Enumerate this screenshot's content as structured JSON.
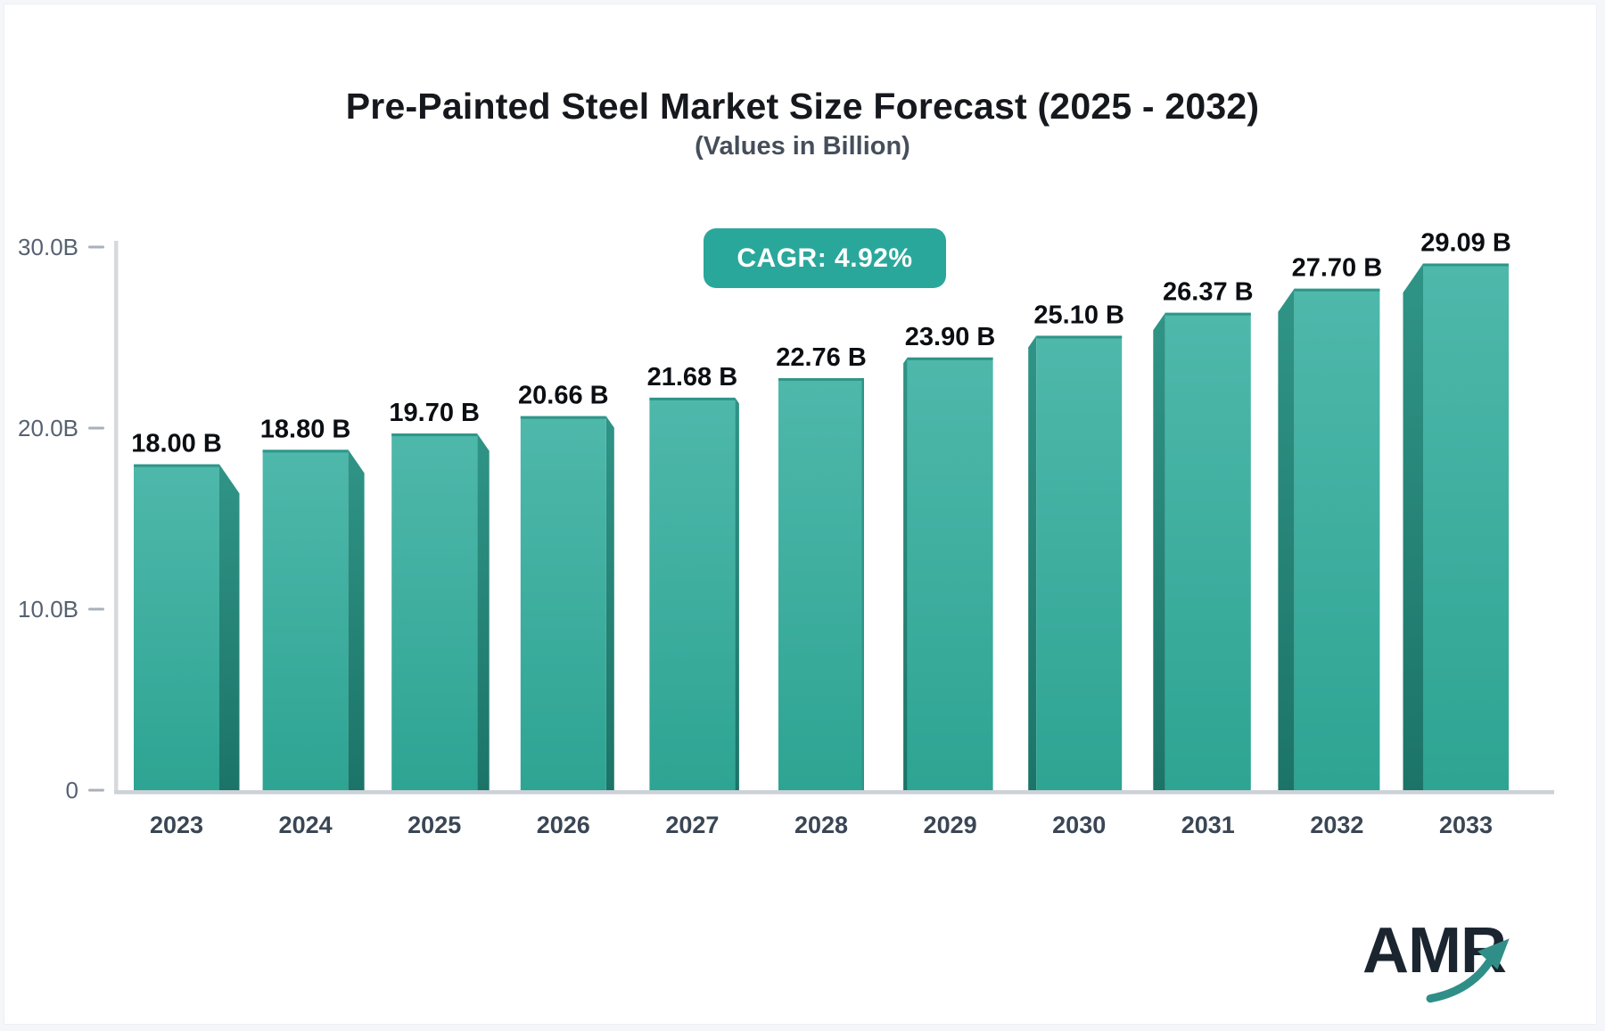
{
  "chart_data": {
    "type": "bar",
    "title": "Pre-Painted Steel Market Size Forecast (2025 - 2032)",
    "subtitle": "(Values in Billion)",
    "cagr_badge": "CAGR: 4.92%",
    "categories": [
      "2023",
      "2024",
      "2025",
      "2026",
      "2027",
      "2028",
      "2029",
      "2030",
      "2031",
      "2032",
      "2033"
    ],
    "values": [
      18.0,
      18.8,
      19.7,
      20.66,
      21.68,
      22.76,
      23.9,
      25.1,
      26.37,
      27.7,
      29.09
    ],
    "value_labels": [
      "18.00 B",
      "18.80 B",
      "19.70 B",
      "20.66 B",
      "21.68 B",
      "22.76 B",
      "23.90 B",
      "25.10 B",
      "26.37 B",
      "27.70 B",
      "29.09 B"
    ],
    "unit": "Billion",
    "ylim": [
      0,
      30
    ],
    "y_ticks": [
      {
        "value": 0,
        "label": "0"
      },
      {
        "value": 10,
        "label": "10.0B"
      },
      {
        "value": 20,
        "label": "20.0B"
      },
      {
        "value": 30,
        "label": "30.0B"
      }
    ],
    "grid": false,
    "legend": false
  },
  "logo": {
    "text": "AMR"
  },
  "colors": {
    "bar_top": "#4EB8AB",
    "bar_bottom": "#2EA493",
    "bar_side_top": "#2F9486",
    "bar_side_bottom": "#1C7468",
    "bar_top_edge": "#2F9589",
    "axis_line": "#D6D9DE",
    "baseline": "#CDD1D8",
    "tick_mark": "#A9B0B8",
    "tick_label": "#566171",
    "x_label": "#3A4654",
    "value_label": "#0B0E12",
    "badge_bg": "#2AA79B",
    "badge_text": "#FFFFFF",
    "title": "#15181D",
    "subtitle": "#454E5A",
    "logo_text": "#1B2530",
    "logo_arrow": "#2F8F88"
  }
}
